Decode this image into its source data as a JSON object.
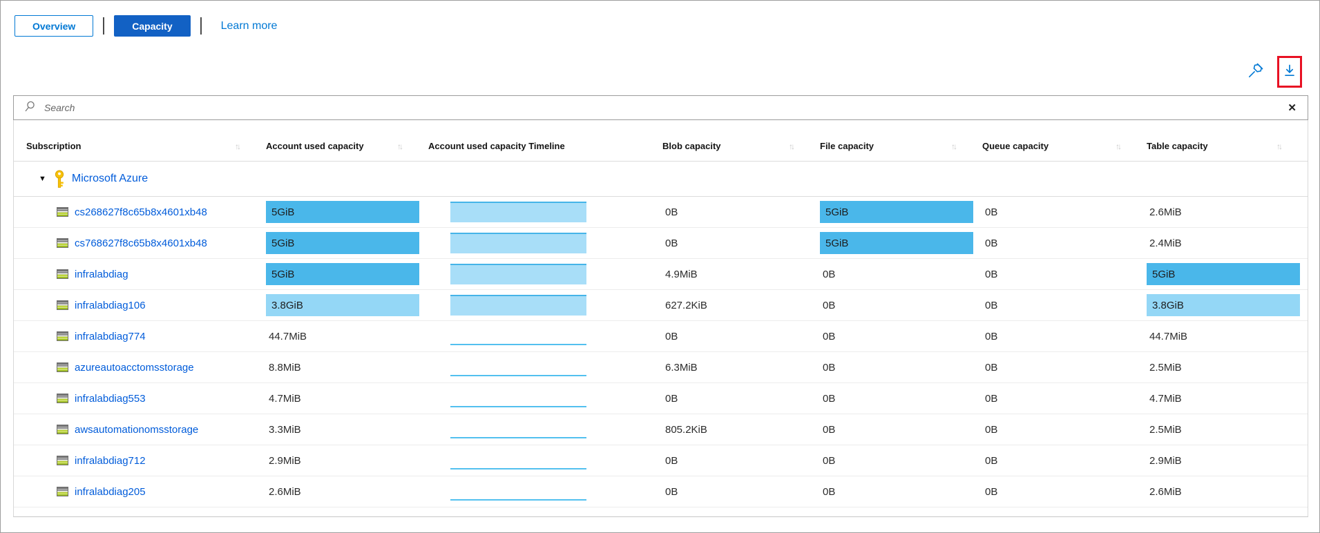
{
  "tabs": {
    "overview": "Overview",
    "capacity": "Capacity",
    "learn_more": "Learn more"
  },
  "search": {
    "placeholder": "Search"
  },
  "icons": {
    "sort": "↑↓",
    "clear": "✕",
    "expand": "▼",
    "search": "magnifier",
    "pin": "pushpin",
    "download": "download-arrow",
    "key": "key",
    "storage": "storage-account"
  },
  "table": {
    "columns": [
      {
        "label": "Subscription",
        "sortable": true
      },
      {
        "label": "Account used capacity",
        "sortable": true
      },
      {
        "label": "Account used capacity Timeline",
        "sortable": false
      },
      {
        "label": "Blob capacity",
        "sortable": true
      },
      {
        "label": "File capacity",
        "sortable": true
      },
      {
        "label": "Queue capacity",
        "sortable": true
      },
      {
        "label": "Table capacity",
        "sortable": true
      }
    ],
    "group": {
      "label": "Microsoft Azure",
      "expanded": true
    },
    "rows": [
      {
        "name": "cs268627f8c65b8x4601xb48",
        "account_used": "5GiB",
        "account_bar": "dark",
        "timeline": "full",
        "blob": "0B",
        "file": "5GiB",
        "file_bar": "dark",
        "queue": "0B",
        "table_capacity": "2.6MiB",
        "table_bar": null
      },
      {
        "name": "cs768627f8c65b8x4601xb48",
        "account_used": "5GiB",
        "account_bar": "dark",
        "timeline": "full",
        "blob": "0B",
        "file": "5GiB",
        "file_bar": "dark",
        "queue": "0B",
        "table_capacity": "2.4MiB",
        "table_bar": null
      },
      {
        "name": "infralabdiag",
        "account_used": "5GiB",
        "account_bar": "dark",
        "timeline": "full",
        "blob": "4.9MiB",
        "file": "0B",
        "file_bar": null,
        "queue": "0B",
        "table_capacity": "5GiB",
        "table_bar": "dark"
      },
      {
        "name": "infralabdiag106",
        "account_used": "3.8GiB",
        "account_bar": "light",
        "timeline": "full",
        "blob": "627.2KiB",
        "file": "0B",
        "file_bar": null,
        "queue": "0B",
        "table_capacity": "3.8GiB",
        "table_bar": "light"
      },
      {
        "name": "infralabdiag774",
        "account_used": "44.7MiB",
        "account_bar": null,
        "timeline": "low",
        "blob": "0B",
        "file": "0B",
        "file_bar": null,
        "queue": "0B",
        "table_capacity": "44.7MiB",
        "table_bar": null
      },
      {
        "name": "azureautoacctomsstorage",
        "account_used": "8.8MiB",
        "account_bar": null,
        "timeline": "low",
        "blob": "6.3MiB",
        "file": "0B",
        "file_bar": null,
        "queue": "0B",
        "table_capacity": "2.5MiB",
        "table_bar": null
      },
      {
        "name": "infralabdiag553",
        "account_used": "4.7MiB",
        "account_bar": null,
        "timeline": "low",
        "blob": "0B",
        "file": "0B",
        "file_bar": null,
        "queue": "0B",
        "table_capacity": "4.7MiB",
        "table_bar": null
      },
      {
        "name": "awsautomationomsstorage",
        "account_used": "3.3MiB",
        "account_bar": null,
        "timeline": "low",
        "blob": "805.2KiB",
        "file": "0B",
        "file_bar": null,
        "queue": "0B",
        "table_capacity": "2.5MiB",
        "table_bar": null
      },
      {
        "name": "infralabdiag712",
        "account_used": "2.9MiB",
        "account_bar": null,
        "timeline": "low",
        "blob": "0B",
        "file": "0B",
        "file_bar": null,
        "queue": "0B",
        "table_capacity": "2.9MiB",
        "table_bar": null
      },
      {
        "name": "infralabdiag205",
        "account_used": "2.6MiB",
        "account_bar": null,
        "timeline": "low",
        "blob": "0B",
        "file": "0B",
        "file_bar": null,
        "queue": "0B",
        "table_capacity": "2.6MiB",
        "table_bar": null
      }
    ]
  },
  "colors": {
    "accent": "#0078d4",
    "capacity_button": "#1261c4",
    "link": "#015cda",
    "bar_dark": "#4ab7ea",
    "bar_light": "#94d7f6",
    "timeline_fill": "#a8def8",
    "timeline_line": "#45b4e8",
    "spark_line": "#52c0ef",
    "highlight_red": "#e81123"
  }
}
